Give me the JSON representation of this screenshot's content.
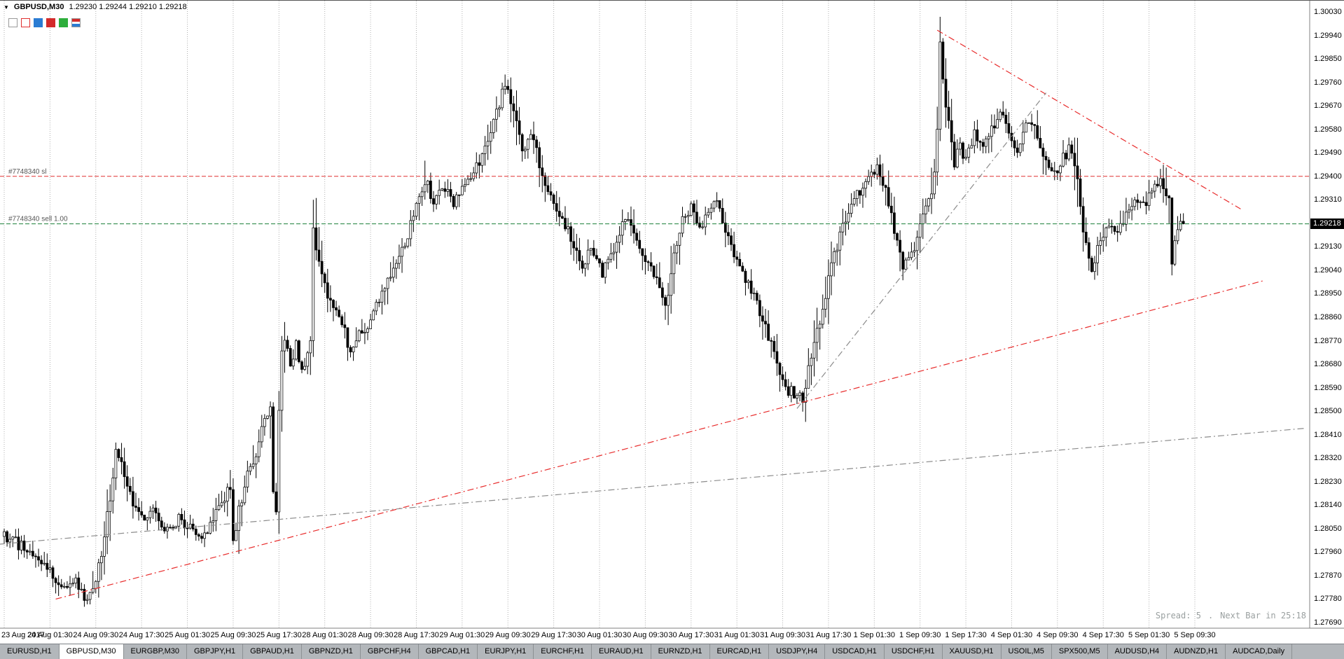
{
  "header": {
    "dropdown_icon": "▼",
    "symbol": "GBPUSD,M30",
    "ohlc": "1.29230 1.29244 1.29210 1.29218"
  },
  "object_toolbar": [
    {
      "name": "white-square-button",
      "fill": "#ffffff",
      "border": "#9a9a9a"
    },
    {
      "name": "red-outline-square-button",
      "fill": "#ffffff",
      "border": "#e03131"
    },
    {
      "name": "blue-square-button",
      "fill": "#2b7cd3",
      "border": "#2b7cd3"
    },
    {
      "name": "red-square-button",
      "fill": "#d32b2b",
      "border": "#d32b2b"
    },
    {
      "name": "green-square-button",
      "fill": "#2eae3c",
      "border": "#2eae3c"
    },
    {
      "name": "flag-square-button",
      "stripes": [
        "#d32b2b",
        "#ffffff",
        "#2b7cd3"
      ]
    }
  ],
  "chart": {
    "background": "#ffffff",
    "grid_color": "#b0b0b0",
    "candle_up_fill": "#ffffff",
    "candle_down_fill": "#000000",
    "candle_border": "#000000",
    "price_axis": {
      "top_value": 1.3003,
      "bottom_value": 1.2769,
      "labels": [
        "1.30030",
        "1.29940",
        "1.29850",
        "1.29760",
        "1.29670",
        "1.29580",
        "1.29490",
        "1.29400",
        "1.29310",
        "1.29220",
        "1.29130",
        "1.29040",
        "1.28950",
        "1.28860",
        "1.28770",
        "1.28680",
        "1.28590",
        "1.28500",
        "1.28410",
        "1.28320",
        "1.28230",
        "1.28140",
        "1.28050",
        "1.27960",
        "1.27870",
        "1.27780",
        "1.27690"
      ],
      "current_price": "1.29218",
      "current_price_value": 1.29218
    },
    "time_axis": {
      "labels": [
        "23 Aug 2017",
        "24 Aug 01:30",
        "24 Aug 09:30",
        "24 Aug 17:30",
        "25 Aug 01:30",
        "25 Aug 09:30",
        "25 Aug 17:30",
        "28 Aug 01:30",
        "28 Aug 09:30",
        "28 Aug 17:30",
        "29 Aug 01:30",
        "29 Aug 09:30",
        "29 Aug 17:30",
        "30 Aug 01:30",
        "30 Aug 09:30",
        "30 Aug 17:30",
        "31 Aug 01:30",
        "31 Aug 09:30",
        "31 Aug 17:30",
        "1 Sep 01:30",
        "1 Sep 09:30",
        "1 Sep 17:30",
        "4 Sep 01:30",
        "4 Sep 09:30",
        "4 Sep 17:30",
        "5 Sep 01:30",
        "5 Sep 09:30"
      ]
    },
    "order_lines": [
      {
        "label": "#7748340 sl",
        "price": 1.294,
        "color": "#e03131",
        "dash": "6,3"
      },
      {
        "label": "#7748340 sell 1.00",
        "price": 1.29218,
        "color": "#1a7f37",
        "dash": "6,3"
      }
    ],
    "trendlines": [
      {
        "name": "resistance-descending-red",
        "color": "#e82c2c",
        "dash": "9,4,2,4",
        "from_bar": 326,
        "from_price": 1.2996,
        "to_bar": 432,
        "to_price": 1.29275
      },
      {
        "name": "support-ascending-red",
        "color": "#e82c2c",
        "dash": "9,4,2,4",
        "from_bar": 18,
        "from_price": 1.2778,
        "to_bar": 440,
        "to_price": 1.29
      },
      {
        "name": "support-ascending-gray",
        "color": "#8c8c8c",
        "dash": "9,4,2,4",
        "from_bar": -2,
        "from_price": 1.2799,
        "to_bar": 455,
        "to_price": 1.28435
      },
      {
        "name": "rally-ascending-gray",
        "color": "#8c8c8c",
        "dash": "9,4,2,4",
        "from_bar": 277,
        "from_price": 1.2851,
        "to_bar": 364,
        "to_price": 1.2972
      }
    ],
    "status": {
      "spread": "Spread: 5",
      "sep": ".",
      "next_bar": "Next Bar in 25:18"
    },
    "chart_data": {
      "type": "candlestick-ohlc",
      "symbol": "GBPUSD",
      "timeframe": "M30",
      "bars_per_gridline": 16,
      "bar_count": 413,
      "price_range": [
        1.2769,
        1.3003
      ],
      "price_path": [
        [
          0,
          1.2802
        ],
        [
          5,
          1.2799
        ],
        [
          10,
          1.2796
        ],
        [
          14,
          1.2791
        ],
        [
          18,
          1.2786
        ],
        [
          22,
          1.2781
        ],
        [
          25,
          1.2784
        ],
        [
          28,
          1.2779
        ],
        [
          31,
          1.2781
        ],
        [
          34,
          1.2796
        ],
        [
          37,
          1.2816
        ],
        [
          39,
          1.2835
        ],
        [
          41,
          1.2832
        ],
        [
          43,
          1.2821
        ],
        [
          46,
          1.2812
        ],
        [
          49,
          1.2806
        ],
        [
          52,
          1.2812
        ],
        [
          55,
          1.2804
        ],
        [
          58,
          1.2806
        ],
        [
          61,
          1.2809
        ],
        [
          64,
          1.2806
        ],
        [
          67,
          1.2804
        ],
        [
          70,
          1.2802
        ],
        [
          73,
          1.2808
        ],
        [
          76,
          1.2816
        ],
        [
          79,
          1.2821
        ],
        [
          80,
          1.2799
        ],
        [
          82,
          1.2813
        ],
        [
          85,
          1.2825
        ],
        [
          88,
          1.2833
        ],
        [
          91,
          1.2847
        ],
        [
          93,
          1.2853
        ],
        [
          94,
          1.282
        ],
        [
          95,
          1.281
        ],
        [
          96,
          1.285
        ],
        [
          97,
          1.2872
        ],
        [
          98,
          1.2879
        ],
        [
          100,
          1.2868
        ],
        [
          102,
          1.2876
        ],
        [
          104,
          1.2865
        ],
        [
          106,
          1.2871
        ],
        [
          107,
          1.2876
        ],
        [
          108,
          1.292
        ],
        [
          110,
          1.2906
        ],
        [
          113,
          1.2895
        ],
        [
          116,
          1.2888
        ],
        [
          119,
          1.288
        ],
        [
          121,
          1.2873
        ],
        [
          124,
          1.2879
        ],
        [
          128,
          1.2885
        ],
        [
          132,
          1.2895
        ],
        [
          136,
          1.2905
        ],
        [
          140,
          1.2915
        ],
        [
          144,
          1.2928
        ],
        [
          147,
          1.2939
        ],
        [
          150,
          1.293
        ],
        [
          153,
          1.2936
        ],
        [
          157,
          1.293
        ],
        [
          161,
          1.2936
        ],
        [
          165,
          1.2944
        ],
        [
          169,
          1.2953
        ],
        [
          172,
          1.2965
        ],
        [
          175,
          1.2975
        ],
        [
          177,
          1.297
        ],
        [
          179,
          1.2962
        ],
        [
          181,
          1.295
        ],
        [
          184,
          1.2957
        ],
        [
          187,
          1.2945
        ],
        [
          190,
          1.2933
        ],
        [
          194,
          1.2925
        ],
        [
          198,
          1.2917
        ],
        [
          202,
          1.2906
        ],
        [
          205,
          1.2912
        ],
        [
          209,
          1.2903
        ],
        [
          212,
          1.291
        ],
        [
          215,
          1.2919
        ],
        [
          218,
          1.2925
        ],
        [
          221,
          1.2915
        ],
        [
          224,
          1.2908
        ],
        [
          228,
          1.2902
        ],
        [
          231,
          1.2889
        ],
        [
          234,
          1.291
        ],
        [
          237,
          1.2923
        ],
        [
          240,
          1.2928
        ],
        [
          243,
          1.292
        ],
        [
          246,
          1.2925
        ],
        [
          249,
          1.293
        ],
        [
          252,
          1.2918
        ],
        [
          255,
          1.291
        ],
        [
          258,
          1.2902
        ],
        [
          262,
          1.2895
        ],
        [
          265,
          1.2885
        ],
        [
          268,
          1.2875
        ],
        [
          271,
          1.2864
        ],
        [
          274,
          1.2858
        ],
        [
          277,
          1.2856
        ],
        [
          279,
          1.2854
        ],
        [
          281,
          1.2868
        ],
        [
          284,
          1.288
        ],
        [
          287,
          1.2895
        ],
        [
          290,
          1.291
        ],
        [
          294,
          1.2923
        ],
        [
          298,
          1.2933
        ],
        [
          302,
          1.294
        ],
        [
          305,
          1.2943
        ],
        [
          308,
          1.2935
        ],
        [
          311,
          1.292
        ],
        [
          314,
          1.2905
        ],
        [
          317,
          1.291
        ],
        [
          320,
          1.292
        ],
        [
          323,
          1.293
        ],
        [
          325,
          1.294
        ],
        [
          326,
          1.296
        ],
        [
          327,
          1.299
        ],
        [
          328,
          1.2975
        ],
        [
          330,
          1.296
        ],
        [
          332,
          1.2945
        ],
        [
          334,
          1.2952
        ],
        [
          336,
          1.2946
        ],
        [
          339,
          1.2958
        ],
        [
          342,
          1.295
        ],
        [
          345,
          1.2958
        ],
        [
          348,
          1.2964
        ],
        [
          351,
          1.2958
        ],
        [
          354,
          1.295
        ],
        [
          357,
          1.296
        ],
        [
          360,
          1.2958
        ],
        [
          363,
          1.2948
        ],
        [
          366,
          1.294
        ],
        [
          369,
          1.2945
        ],
        [
          372,
          1.295
        ],
        [
          375,
          1.294
        ],
        [
          377,
          1.292
        ],
        [
          380,
          1.2905
        ],
        [
          383,
          1.2915
        ],
        [
          386,
          1.292
        ],
        [
          389,
          1.2918
        ],
        [
          392,
          1.2925
        ],
        [
          395,
          1.293
        ],
        [
          398,
          1.2928
        ],
        [
          401,
          1.2935
        ],
        [
          404,
          1.294
        ],
        [
          407,
          1.293
        ],
        [
          408,
          1.2908
        ],
        [
          410,
          1.292
        ],
        [
          412,
          1.29218
        ]
      ],
      "key_extremes": [
        [
          28,
          "low",
          1.2778
        ],
        [
          39,
          "high",
          1.2838
        ],
        [
          98,
          "high",
          1.2882
        ],
        [
          108,
          "high",
          1.2931
        ],
        [
          147,
          "high",
          1.2946
        ],
        [
          175,
          "high",
          1.2979
        ],
        [
          231,
          "low",
          1.2885
        ],
        [
          279,
          "low",
          1.285
        ],
        [
          305,
          "high",
          1.2946
        ],
        [
          327,
          "high",
          1.2996
        ],
        [
          408,
          "low",
          1.2904
        ]
      ]
    }
  },
  "tabs": {
    "active_index": 1,
    "items": [
      "EURUSD,H1",
      "GBPUSD,M30",
      "EURGBP,M30",
      "GBPJPY,H1",
      "GBPAUD,H1",
      "GBPNZD,H1",
      "GBPCHF,H4",
      "GBPCAD,H1",
      "EURJPY,H1",
      "EURCHF,H1",
      "EURAUD,H1",
      "EURNZD,H1",
      "EURCAD,H1",
      "USDJPY,H4",
      "USDCAD,H1",
      "USDCHF,H1",
      "XAUUSD,H1",
      "USOIL,M5",
      "SPX500,M5",
      "AUDUSD,H4",
      "AUDNZD,H1",
      "AUDCAD,Daily"
    ]
  }
}
